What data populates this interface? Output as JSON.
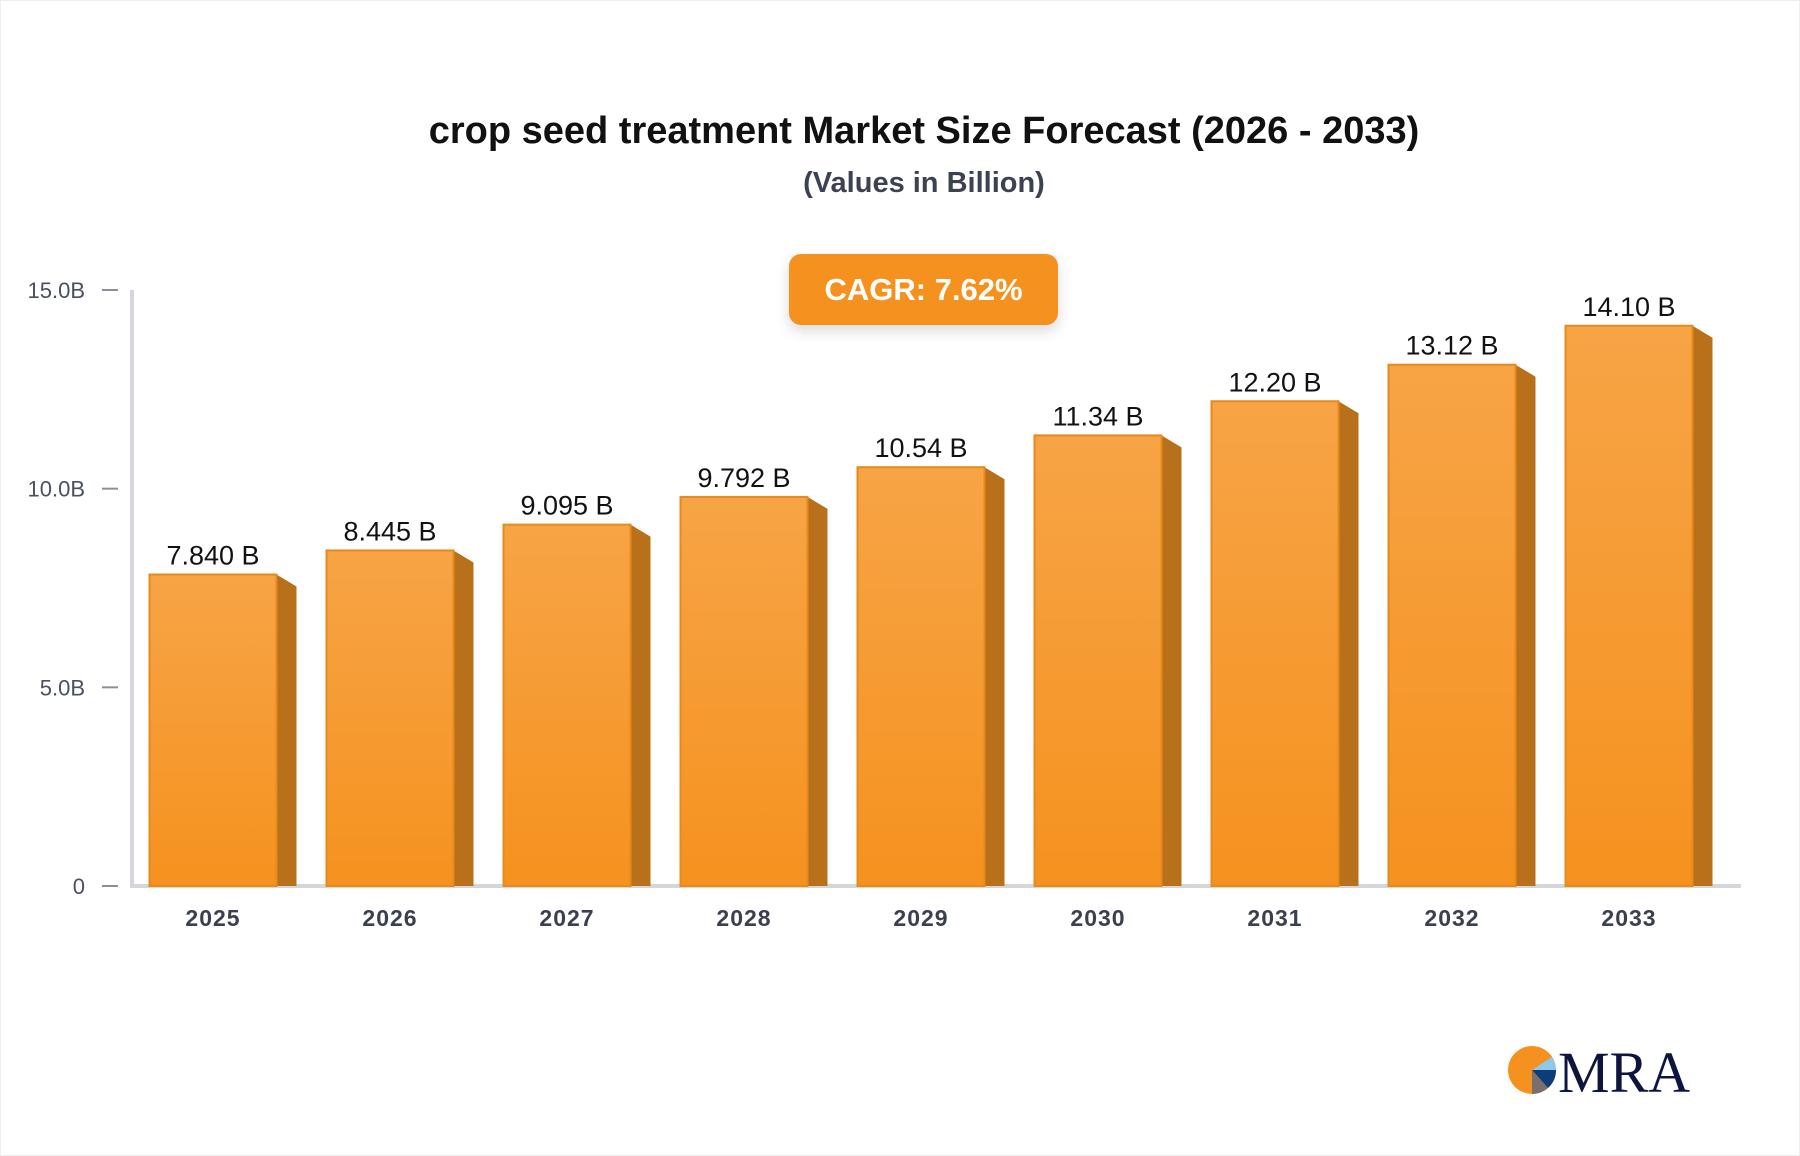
{
  "chart_data": {
    "type": "bar",
    "title": "crop seed treatment Market Size Forecast (2026 - 2033)",
    "subtitle": "(Values in Billion)",
    "annotation": "CAGR: 7.62%",
    "categories": [
      "2025",
      "2026",
      "2027",
      "2028",
      "2029",
      "2030",
      "2031",
      "2032",
      "2033"
    ],
    "values": [
      7.84,
      8.445,
      9.095,
      9.792,
      10.54,
      11.34,
      12.2,
      13.12,
      14.1
    ],
    "data_labels": [
      "7.840 B",
      "8.445 B",
      "9.095 B",
      "9.792 B",
      "10.54 B",
      "11.34 B",
      "12.20 B",
      "13.12 B",
      "14.10 B"
    ],
    "yticks": [
      0,
      5,
      10,
      15
    ],
    "ytick_labels": [
      "0",
      "5.0B",
      "10.0B",
      "15.0B"
    ],
    "ylim": [
      0,
      15
    ],
    "grid": false,
    "colors": {
      "bar": "#f7a446",
      "bar_bottom": "#f5921f",
      "bar_side": "#b8701a",
      "accent": "#f5921f"
    }
  },
  "logo": {
    "text": "MRA"
  }
}
